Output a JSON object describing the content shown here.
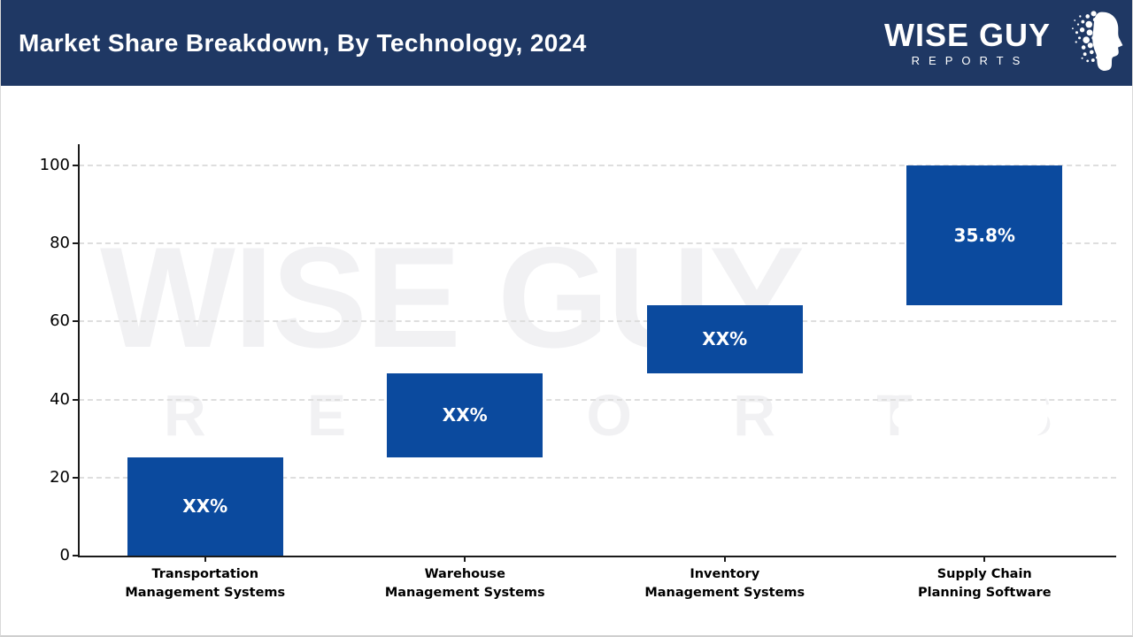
{
  "header": {
    "title": "Market Share Breakdown, By Technology, 2024",
    "bg_color": "#1f3864",
    "logo": {
      "line1": "WISE GUY",
      "line2": "REPORTS"
    }
  },
  "watermark": {
    "line1": "WISE GUY",
    "line2": "R E P O R T S"
  },
  "chart_data": {
    "type": "bar",
    "variant": "waterfall",
    "title": "Market Share Breakdown, By Technology, 2024",
    "categories": [
      "Transportation\nManagement Systems",
      "Warehouse\nManagement Systems",
      "Inventory\nManagement Systems",
      "Supply Chain\nPlanning Software"
    ],
    "segments": [
      {
        "start": 0,
        "end": 25.2,
        "label": "XX%"
      },
      {
        "start": 25.2,
        "end": 46.8,
        "label": "XX%"
      },
      {
        "start": 46.8,
        "end": 64.2,
        "label": "XX%"
      },
      {
        "start": 64.2,
        "end": 100,
        "label": "35.8%"
      }
    ],
    "values": [
      25.2,
      21.6,
      17.4,
      35.8
    ],
    "y_ticks": [
      0,
      20,
      40,
      60,
      80,
      100
    ],
    "ylim": [
      0,
      106
    ],
    "xlabel": "",
    "ylabel": "",
    "grid": "horizontal dashed",
    "legend": "none",
    "bar_color": "#0b4a9e",
    "bar_label_color": "#ffffff",
    "axis_color": "#1a1a1a"
  }
}
